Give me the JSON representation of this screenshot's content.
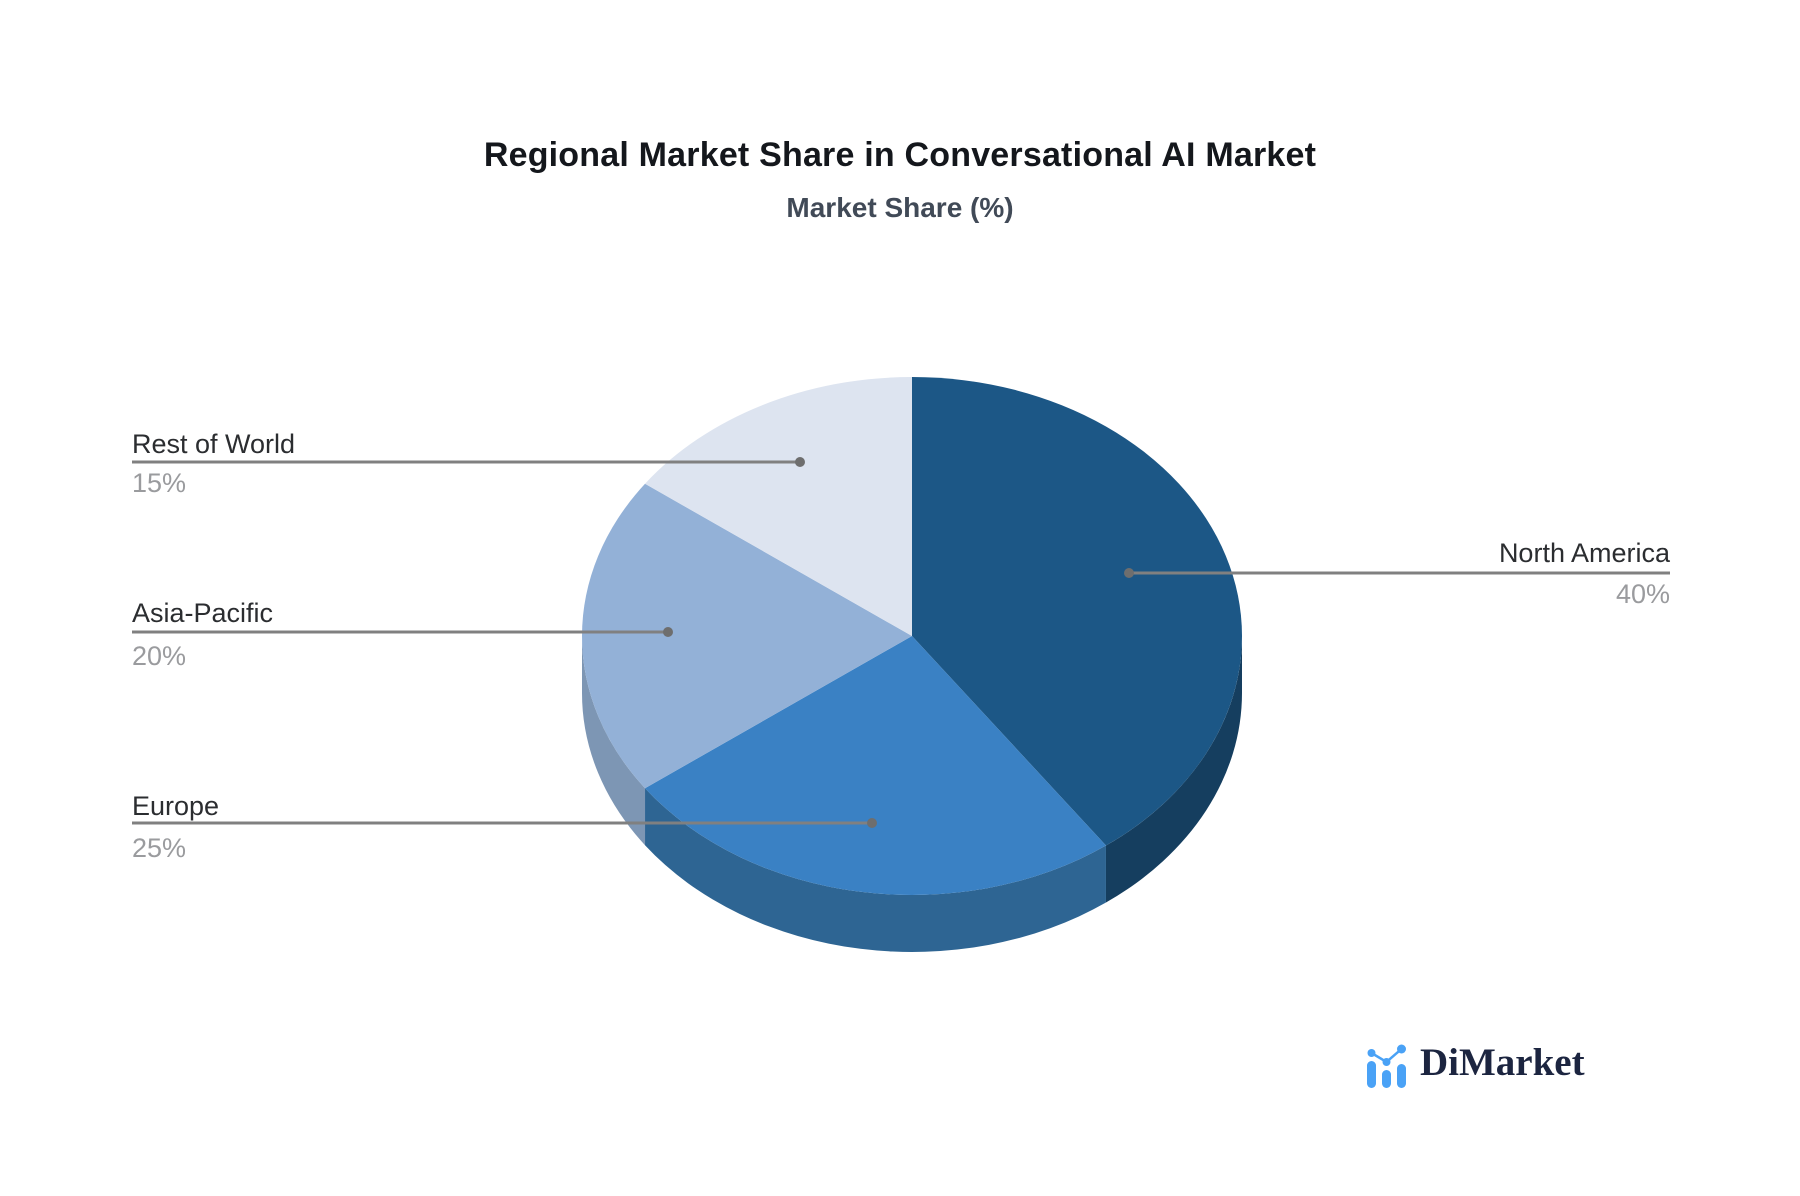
{
  "title": "Regional Market Share in Conversational AI Market",
  "subtitle": "Market Share (%)",
  "brand": {
    "name": "DiMarket",
    "icon": "bar-line-chart-icon",
    "text_color": "#1c2540",
    "icon_color": "#4aa2f6"
  },
  "colors": {
    "background": "#ffffff",
    "title_text": "#14171c",
    "subtitle_text": "#414a57",
    "label_text": "#2b2d30",
    "percent_text": "#9a9b9e",
    "leader_line": "#808080",
    "leader_dot": "#6e6e6e"
  },
  "chart_data": {
    "type": "pie",
    "is_3d": true,
    "title": "Regional Market Share in Conversational AI Market",
    "subtitle": "Market Share (%)",
    "unit": "%",
    "start_angle": "top",
    "direction": "clockwise",
    "legend_position": "callout-labels",
    "labels": [
      "North America",
      "Europe",
      "Asia-Pacific",
      "Rest of World"
    ],
    "values": [
      40,
      25,
      20,
      15
    ],
    "slices": [
      {
        "label": "North America",
        "value": 40,
        "display": "40%",
        "color_top": "#1c5786",
        "color_side": "#153e5f"
      },
      {
        "label": "Europe",
        "value": 25,
        "display": "25%",
        "color_top": "#3a81c4",
        "color_side": "#2e6593"
      },
      {
        "label": "Asia-Pacific",
        "value": 20,
        "display": "20%",
        "color_top": "#93b1d7",
        "color_side": "#7d96b4"
      },
      {
        "label": "Rest of World",
        "value": 15,
        "display": "15%",
        "color_top": "#dde4f0",
        "color_side": "#c2cbdc"
      }
    ]
  }
}
